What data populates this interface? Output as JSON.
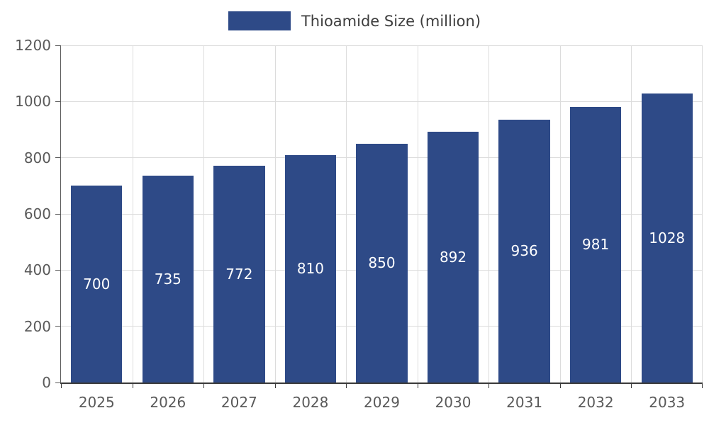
{
  "legend": {
    "label": "Thioamide Size (million)"
  },
  "chart_data": {
    "type": "bar",
    "title": "Thioamide Size (million)",
    "series_name": "Thioamide Size (million)",
    "categories": [
      "2025",
      "2026",
      "2027",
      "2028",
      "2029",
      "2030",
      "2031",
      "2032",
      "2033"
    ],
    "values": [
      700,
      735,
      772,
      810,
      850,
      892,
      936,
      981,
      1028
    ],
    "xlabel": "",
    "ylabel": "",
    "ylim": [
      0,
      1200
    ],
    "ytick_step": 200,
    "grid": true,
    "legend_position": "top",
    "bar_color": "#2e4a87",
    "value_label_color": "#ffffff",
    "axis_text_color": "#595959",
    "grid_color": "#dcdcdc",
    "background": "#ffffff"
  }
}
